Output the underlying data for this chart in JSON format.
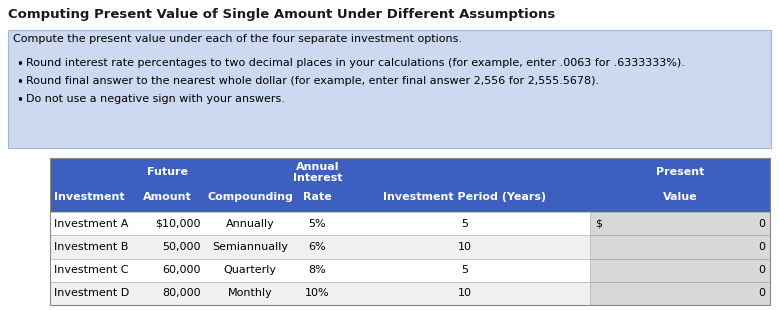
{
  "title": "Computing Present Value of Single Amount Under Different Assumptions",
  "instructions": [
    "Compute the present value under each of the four separate investment options.",
    "Round interest rate percentages to two decimal places in your calculations (for example, enter .0063 for .6333333%).",
    "Round final answer to the nearest whole dollar (for example, enter final answer 2,556 for 2,555.5678).",
    "Do not use a negative sign with your answers."
  ],
  "header_bg": "#3d5fc0",
  "instruction_bg": "#ccd9f0",
  "instruction_border": "#a0b8d8",
  "row_colors": [
    "#ffffff",
    "#f0f0f0"
  ],
  "pv_cell_color": "#d8d8d8",
  "rows": [
    [
      "Investment A",
      "$10,000",
      "Annually",
      "5%",
      "5",
      "$",
      "0"
    ],
    [
      "Investment B",
      "50,000",
      "Semiannually",
      "6%",
      "10",
      "",
      "0"
    ],
    [
      "Investment C",
      "60,000",
      "Quarterly",
      "8%",
      "5",
      "",
      "0"
    ],
    [
      "Investment D",
      "80,000",
      "Monthly",
      "10%",
      "10",
      "",
      "0"
    ]
  ],
  "title_fontsize": 9.5,
  "instr_fontsize": 8.0,
  "hdr_fontsize": 8.0,
  "data_fontsize": 8.0,
  "fig_w": 7.79,
  "fig_h": 3.1,
  "dpi": 100
}
